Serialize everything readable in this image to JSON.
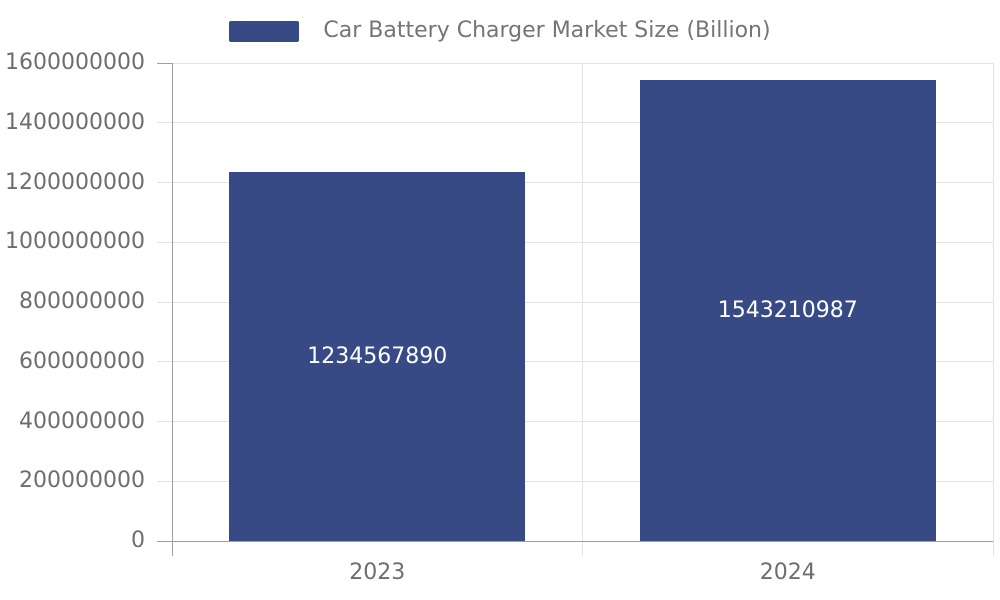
{
  "legend": {
    "label": "Car Battery Charger Market Size (Billion)"
  },
  "colors": {
    "bar": "#384A85",
    "bar_label": "#FFFFFF",
    "axis_line": "#9E9E9E",
    "gridline": "#E3E3E3",
    "tick_label_text": "#6E6E6E",
    "legend_text": "#757575",
    "background": "#FFFFFF"
  },
  "chart_data": {
    "type": "bar",
    "title": "Car Battery Charger Market Size (Billion)",
    "categories": [
      "2023",
      "2024"
    ],
    "values": [
      1234567890,
      1543210987
    ],
    "bar_labels": [
      "1234567890",
      "1543210987"
    ],
    "xlabel": "",
    "ylabel": "",
    "ylim": [
      0,
      1600000000
    ],
    "ytick_step": 200000000,
    "ytick_labels": [
      "0",
      "200000000",
      "400000000",
      "600000000",
      "800000000",
      "1000000000",
      "1200000000",
      "1400000000",
      "1600000000"
    ],
    "grid": true,
    "legend_position": "top",
    "legend_entries": [
      "Car Battery Charger Market Size (Billion)"
    ]
  }
}
